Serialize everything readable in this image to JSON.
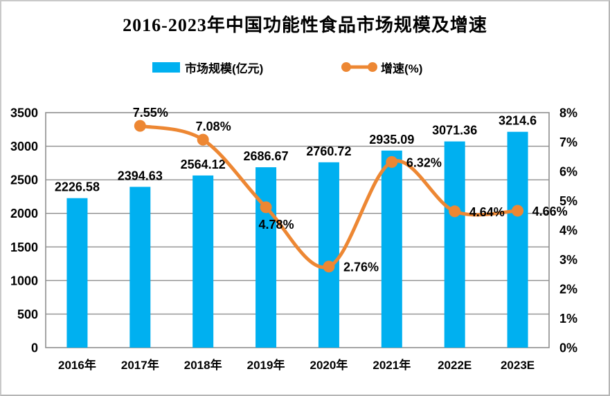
{
  "chart_data": {
    "type": "combo-bar-line",
    "title": "2016-2023年中国功能性食品市场规模及增速",
    "categories": [
      "2016年",
      "2017年",
      "2018年",
      "2019年",
      "2020年",
      "2021年",
      "2022E",
      "2023E"
    ],
    "series": [
      {
        "name": "市场规模(亿元)",
        "type": "bar",
        "axis": "left",
        "color": "#00B0F0",
        "values": [
          2226.58,
          2394.63,
          2564.12,
          2686.67,
          2760.72,
          2935.09,
          3071.36,
          3214.6
        ],
        "labels": [
          "2226.58",
          "2394.63",
          "2564.12",
          "2686.67",
          "2760.72",
          "2935.09",
          "3071.36",
          "3214.6"
        ]
      },
      {
        "name": "增速(%)",
        "type": "line",
        "axis": "right",
        "color": "#ED8733",
        "smooth": true,
        "values": [
          null,
          7.55,
          7.08,
          4.78,
          2.76,
          6.32,
          4.64,
          4.66
        ],
        "labels": [
          null,
          "7.55%",
          "7.08%",
          "4.78%",
          "2.76%",
          "6.32%",
          "4.64%",
          "4.66%"
        ],
        "label_placement": [
          null,
          "above",
          "above",
          "below",
          "right",
          "right",
          "right",
          "right"
        ]
      }
    ],
    "left_axis": {
      "min": 0,
      "max": 3500,
      "step": 500,
      "ticks": [
        "0",
        "500",
        "1000",
        "1500",
        "2000",
        "2500",
        "3000",
        "3500"
      ]
    },
    "right_axis": {
      "min": 0,
      "max": 8,
      "step": 1,
      "ticks": [
        "0%",
        "1%",
        "2%",
        "3%",
        "4%",
        "5%",
        "6%",
        "7%",
        "8%"
      ]
    },
    "grid": true,
    "legend_position": "top"
  },
  "colors": {
    "bar": "#00B0F0",
    "line": "#ED8733",
    "grid": "#8e8e8e",
    "text": "#000000",
    "background": "#ffffff"
  }
}
